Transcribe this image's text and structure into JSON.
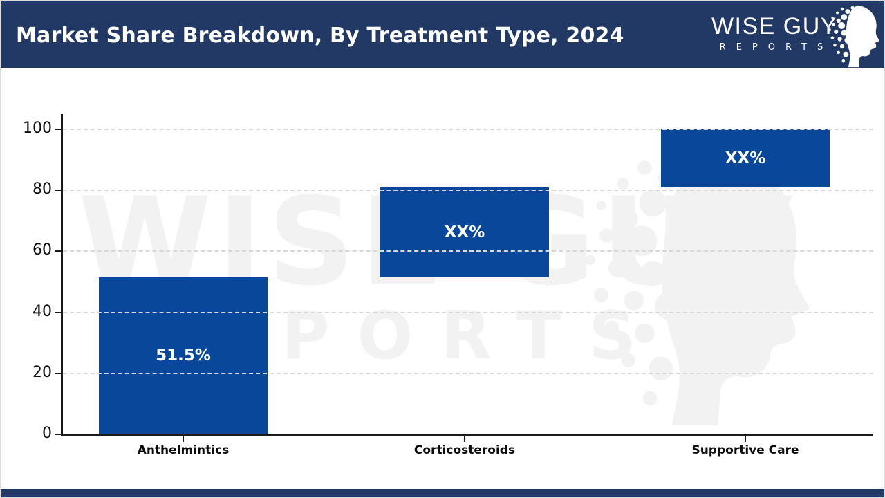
{
  "header": {
    "title": "Market Share Breakdown, By Treatment Type, 2024",
    "logo": {
      "wordmark": "WISE GUY",
      "subtext": "REPORTS",
      "head_icon": "dotted-head-profile"
    }
  },
  "watermark": {
    "wordmark": "WISE GUY",
    "subtext": "REPORTS"
  },
  "colors": {
    "header_bg": "#223965",
    "footer_bg": "#223965",
    "bar": "#09479a",
    "bar_label": "#ffffff",
    "axis": "#1a1a1a",
    "grid": "#d8d8d8",
    "watermark": "#f2f2f2",
    "page_bg": "#ffffff"
  },
  "chart_data": {
    "type": "bar",
    "variant": "stacked-waterfall-segments",
    "title": "Market Share Breakdown, By Treatment Type, 2024",
    "categories": [
      "Anthelmintics",
      "Corticosteroids",
      "Supportive Care"
    ],
    "segments": [
      {
        "category": "Anthelmintics",
        "start": 0,
        "end": 51.5,
        "label": "51.5%"
      },
      {
        "category": "Corticosteroids",
        "start": 51.5,
        "end": 81,
        "label": "XX%"
      },
      {
        "category": "Supportive Care",
        "start": 81,
        "end": 100,
        "label": "XX%"
      }
    ],
    "xlabel": "",
    "ylabel": "",
    "ylim": [
      0,
      100
    ],
    "yticks": [
      0,
      20,
      40,
      60,
      80,
      100
    ],
    "grid": true,
    "legend": false
  }
}
